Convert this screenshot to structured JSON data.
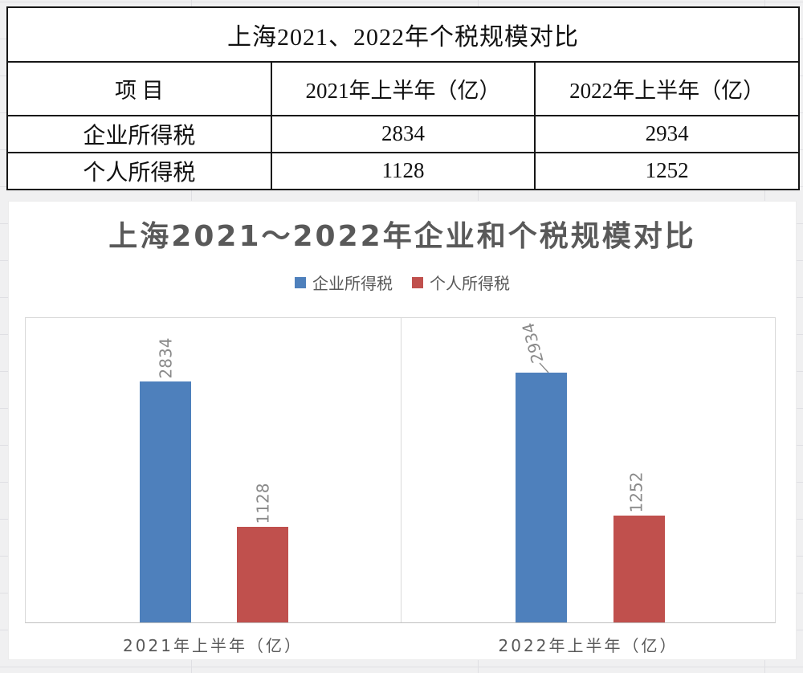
{
  "table": {
    "title": "上海2021、2022年个税规模对比",
    "columns": [
      "项 目",
      "2021年上半年（亿）",
      "2022年上半年（亿）"
    ],
    "rows": [
      [
        "企业所得税",
        "2834",
        "2934"
      ],
      [
        "个人所得税",
        "1128",
        "1252"
      ]
    ]
  },
  "chart_data": {
    "type": "bar",
    "title": "上海2021～2022年企业和个税规模对比",
    "categories": [
      "2021年上半年（亿）",
      "2022年上半年（亿）"
    ],
    "series": [
      {
        "name": "企业所得税",
        "color": "#4e80bc",
        "values": [
          2834,
          2934
        ]
      },
      {
        "name": "个人所得税",
        "color": "#c0504d",
        "values": [
          1128,
          1252
        ]
      }
    ],
    "ylim": [
      0,
      3600
    ],
    "legend_position": "top",
    "grid": "vertical panel divider only, no y-axis ticks",
    "data_labels": "rotated vertically above bars",
    "colors": {
      "title_text": "#595959",
      "label_text": "#8a8a8a",
      "axis_line": "#bfbfbf"
    }
  }
}
